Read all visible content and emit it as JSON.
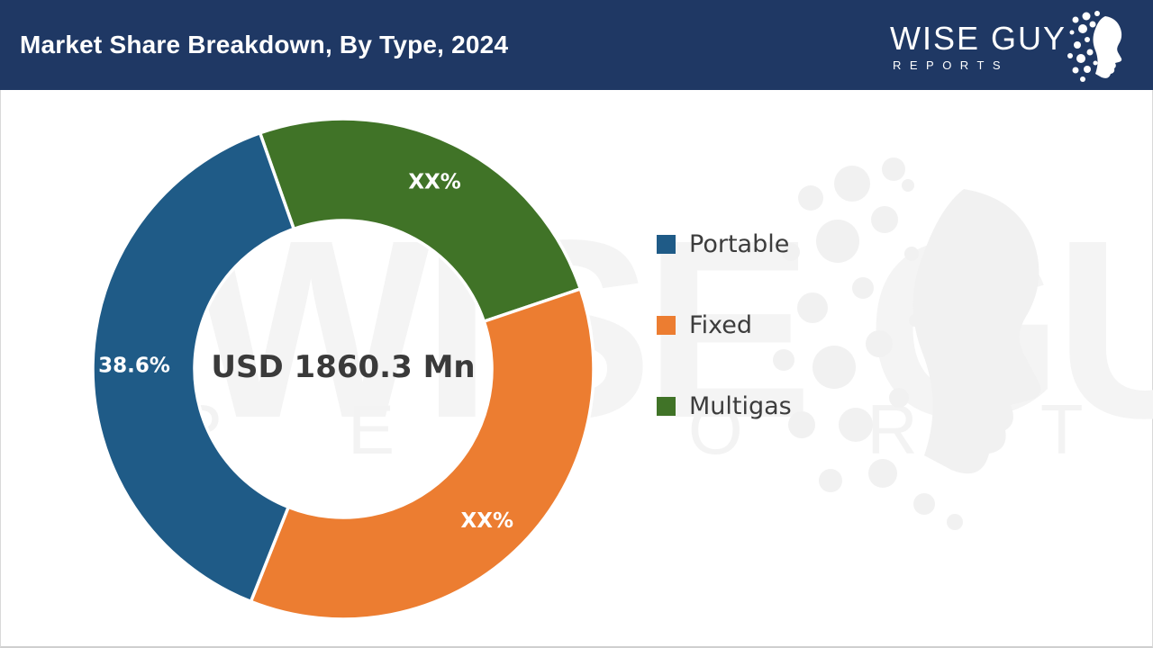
{
  "header": {
    "title": "Market Share Breakdown, By Type, 2024",
    "logo": {
      "line1": "WISE GUY",
      "line2": "REPORTS"
    }
  },
  "watermark": {
    "line1": "WISE GUY",
    "line2": "R E P O R T S"
  },
  "chart_data": {
    "type": "pie",
    "subtype": "donut",
    "title": "Market Share Breakdown, By Type, 2024",
    "center_label": "USD 1860.3 Mn",
    "start_angle_deg": -19.4,
    "segments": [
      {
        "name": "Multigas",
        "display_label": "XX%",
        "value_pct": 25.2,
        "color": "#407327"
      },
      {
        "name": "Fixed",
        "display_label": "XX%",
        "value_pct": 36.2,
        "color": "#EC7D31"
      },
      {
        "name": "Portable",
        "display_label": "38.6%",
        "value_pct": 38.6,
        "color": "#1F5B87"
      }
    ],
    "legend_order": [
      "Portable",
      "Fixed",
      "Multigas"
    ],
    "legend_position": "right"
  },
  "colors": {
    "header_bg": "#1F3864",
    "text_dark": "#3A3A3A",
    "watermark": "#f3f3f3",
    "segment_gap": "#ffffff"
  }
}
